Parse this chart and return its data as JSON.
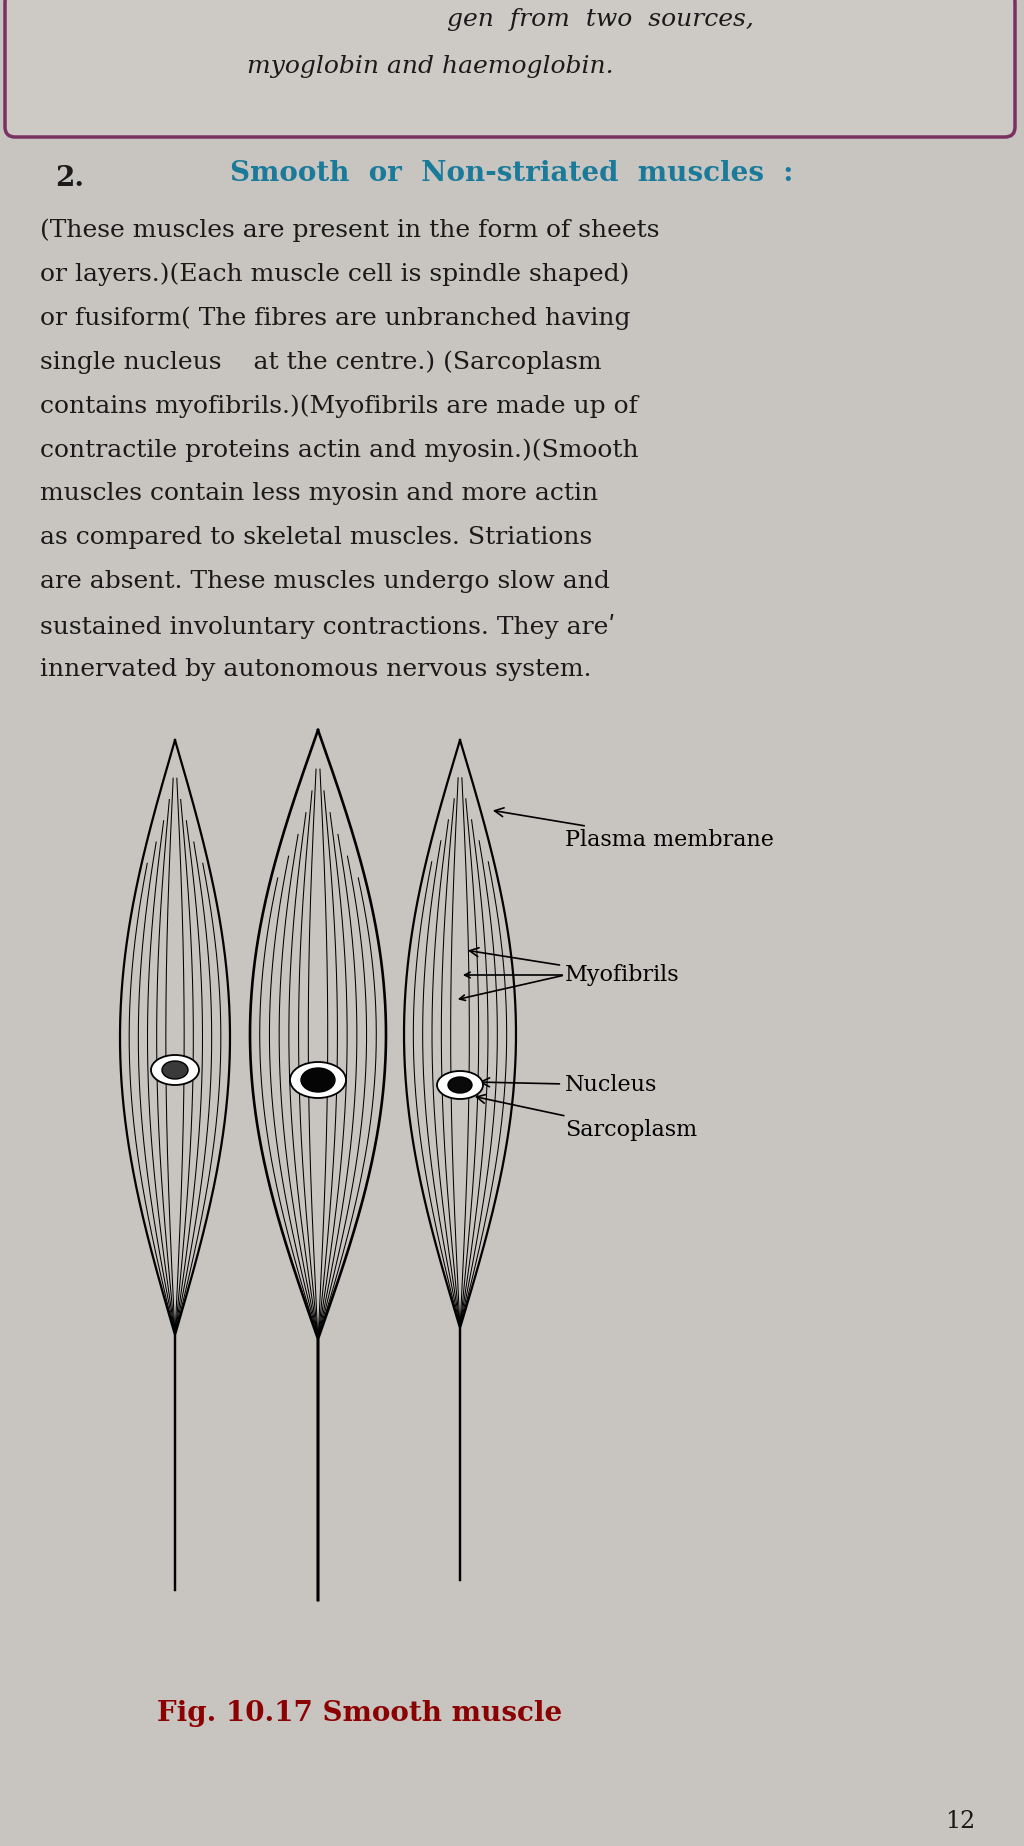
{
  "bg_color": "#c8c4c0",
  "page_bg": "#d4d0cc",
  "text_color": "#1a1a1a",
  "title_color": "#1a7a9a",
  "fig_caption_color": "#8b0000",
  "top_box_bg": "#cdc9c5",
  "top_box_border": "#7a3060",
  "label_plasma": "Plasma membrane",
  "label_myofibrils": "Myofibrils",
  "label_nucleus": "Nucleus",
  "label_sarcoplasm": "Sarcoplasm",
  "fig_caption": "Fig. 10.17 Smooth muscle",
  "page_number": "12"
}
